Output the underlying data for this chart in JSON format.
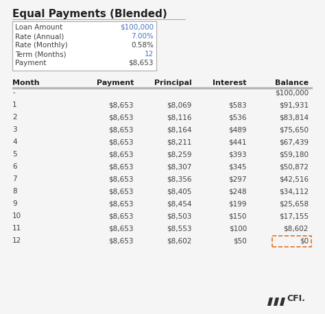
{
  "title": "Equal Payments (Blended)",
  "info_labels": [
    "Loan Amount",
    "Rate (Annual)",
    "Rate (Monthly)",
    "Term (Months)",
    "Payment"
  ],
  "info_values": [
    "$100,000",
    "7.00%",
    "0.58%",
    "12",
    "$8,653"
  ],
  "info_colors": [
    "#4472C4",
    "#4472C4",
    "#404040",
    "#4472C4",
    "#404040"
  ],
  "col_headers": [
    "Month",
    "Payment",
    "Principal",
    "Interest",
    "Balance"
  ],
  "table_data": [
    [
      "-",
      "",
      "",
      "",
      "$100,000"
    ],
    [
      "1",
      "$8,653",
      "$8,069",
      "$583",
      "$91,931"
    ],
    [
      "2",
      "$8,653",
      "$8,116",
      "$536",
      "$83,814"
    ],
    [
      "3",
      "$8,653",
      "$8,164",
      "$489",
      "$75,650"
    ],
    [
      "4",
      "$8,653",
      "$8,211",
      "$441",
      "$67,439"
    ],
    [
      "5",
      "$8,653",
      "$8,259",
      "$393",
      "$59,180"
    ],
    [
      "6",
      "$8,653",
      "$8,307",
      "$345",
      "$50,872"
    ],
    [
      "7",
      "$8,653",
      "$8,356",
      "$297",
      "$42,516"
    ],
    [
      "8",
      "$8,653",
      "$8,405",
      "$248",
      "$34,112"
    ],
    [
      "9",
      "$8,653",
      "$8,454",
      "$199",
      "$25,658"
    ],
    [
      "10",
      "$8,653",
      "$8,503",
      "$150",
      "$17,155"
    ],
    [
      "11",
      "$8,653",
      "$8,553",
      "$100",
      "$8,602"
    ],
    [
      "12",
      "$8,653",
      "$8,602",
      "$50",
      "$0"
    ]
  ],
  "highlight_last_balance": true,
  "highlight_color": "#E07020",
  "bg_color": "#F5F5F5",
  "text_color": "#404040",
  "header_color": "#202020",
  "info_box_color": "#FFFFFF",
  "cfi_color": "#303030"
}
